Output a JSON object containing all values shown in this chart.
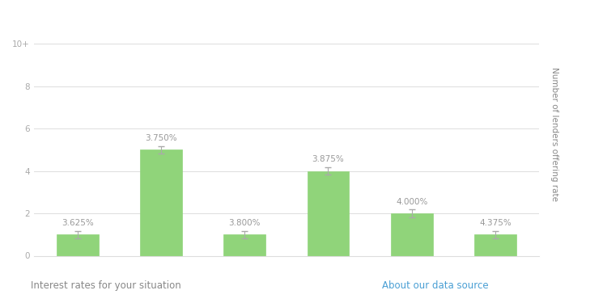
{
  "categories": [
    "3.625%",
    "3.750%",
    "3.800%",
    "3.875%",
    "4.000%",
    "4.375%"
  ],
  "values": [
    1,
    5,
    1,
    4,
    2,
    1
  ],
  "bar_color": "#90d47a",
  "bar_edge_color": "#90d47a",
  "error_bar_color": "#aaaaaa",
  "xlabel": "Interest rates for your situation",
  "ylabel": "Number of lenders offering rate",
  "link_text": "About our data source",
  "link_color": "#4a9fd4",
  "yticks": [
    0,
    2,
    4,
    6,
    8,
    10
  ],
  "ytick_labels": [
    "0",
    "2",
    "4",
    "6",
    "8",
    "10+"
  ],
  "ylim": [
    0,
    11.5
  ],
  "background_color": "#ffffff",
  "grid_color": "#dddddd",
  "tick_label_color": "#aaaaaa",
  "axis_label_color": "#888888",
  "xlabel_color": "#888888",
  "bar_label_color": "#999999",
  "bar_label_fontsize": 7.5,
  "xlabel_fontsize": 8.5,
  "ylabel_fontsize": 7.5
}
